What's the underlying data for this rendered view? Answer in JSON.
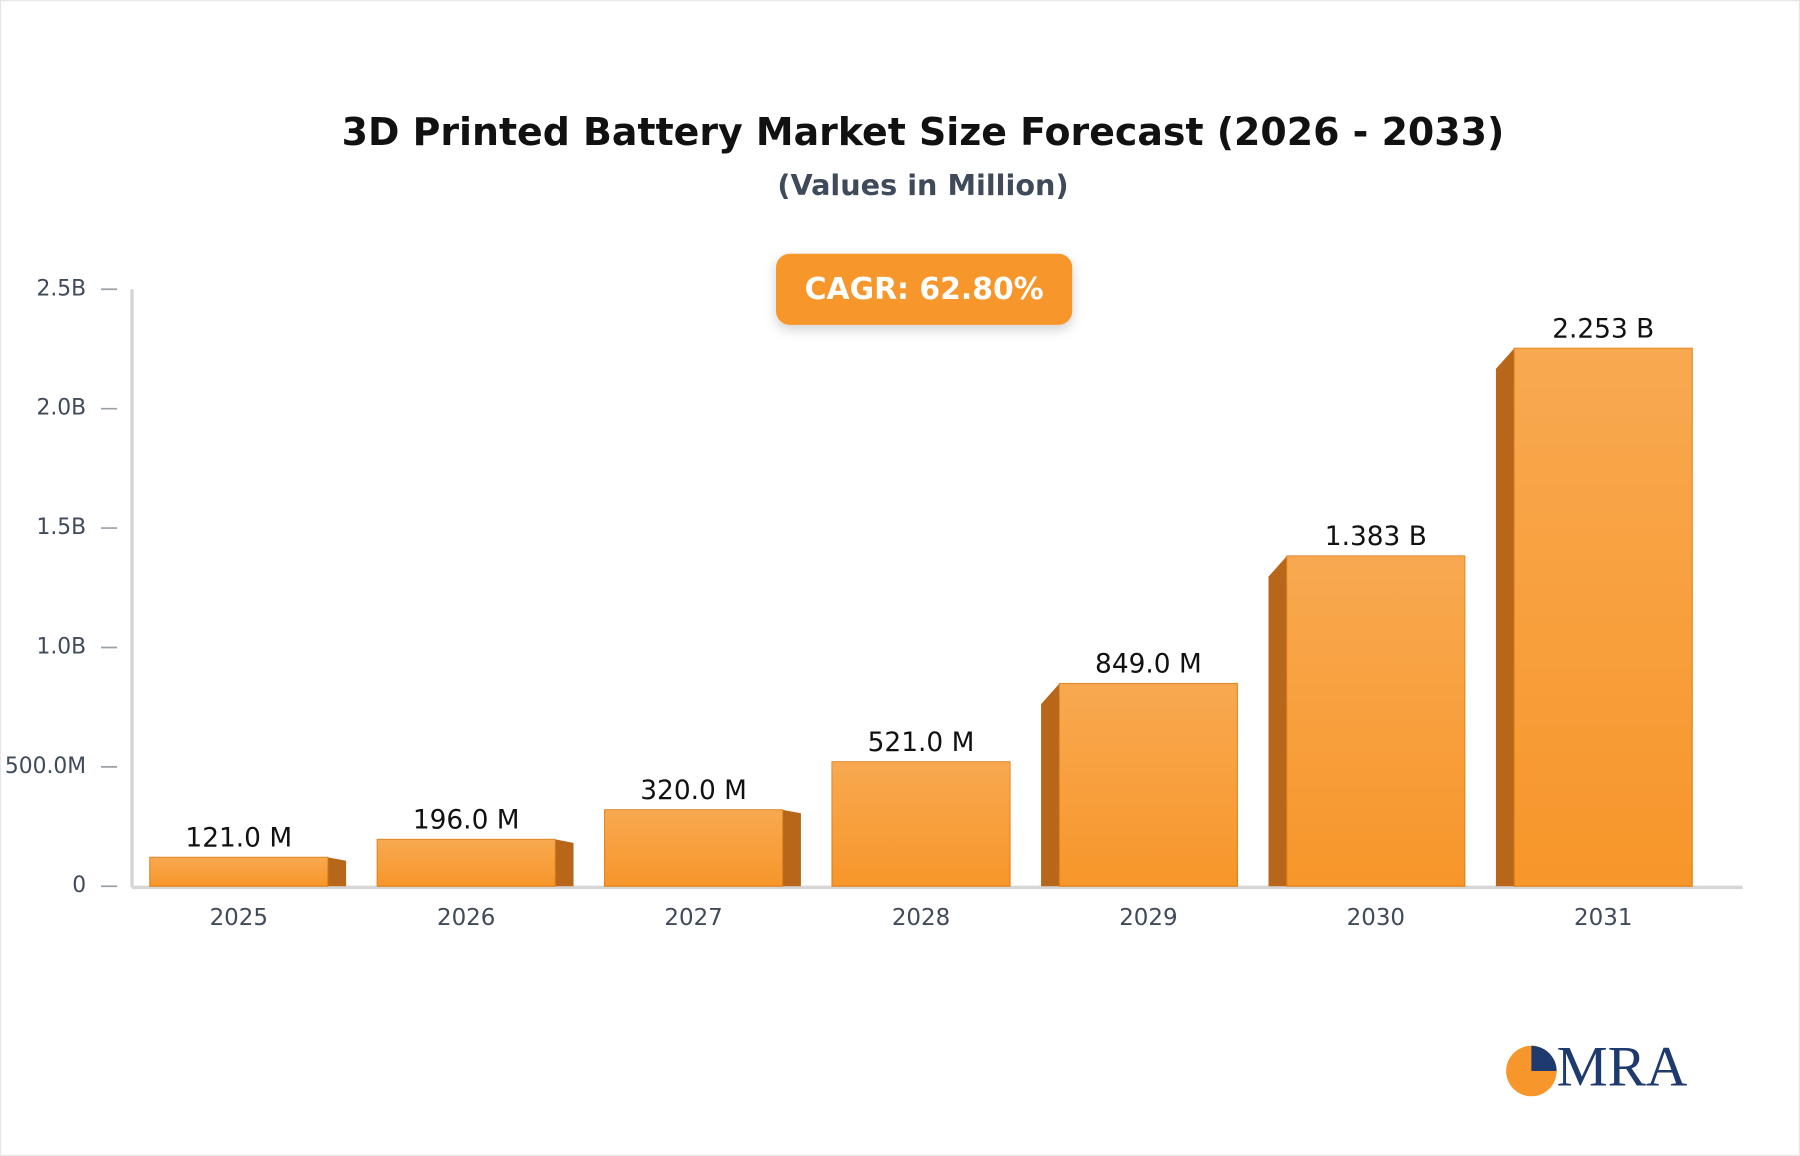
{
  "chart_data": {
    "type": "bar",
    "title": "3D Printed Battery Market Size Forecast (2026 - 2033)",
    "subtitle": "(Values in Million)",
    "annotation": "CAGR: 62.80%",
    "logo": "MRA",
    "categories": [
      "2025",
      "2026",
      "2027",
      "2028",
      "2029",
      "2030",
      "2031"
    ],
    "values": [
      121,
      196,
      320,
      521,
      849,
      1383,
      2253
    ],
    "value_labels": [
      "121.0 M",
      "196.0 M",
      "320.0 M",
      "521.0 M",
      "849.0 M",
      "1.383 B",
      "2.253 B"
    ],
    "color": "#f7962a",
    "ylim": [
      0,
      2500
    ],
    "yticks": [
      0,
      {
        "value": 500,
        "label": "500.0M"
      },
      {
        "value": 1000,
        "label": "1.0B"
      },
      {
        "value": 1500,
        "label": "1.5B"
      },
      {
        "value": 2000,
        "label": "2.0B"
      },
      {
        "value": 2500,
        "label": "2.5B"
      }
    ],
    "grid": false
  }
}
